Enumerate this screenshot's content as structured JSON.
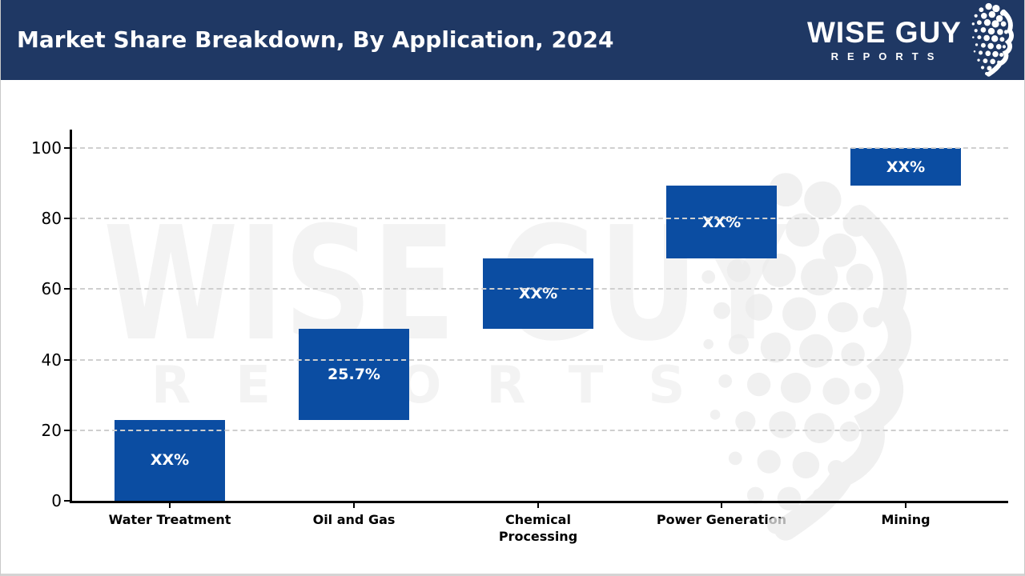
{
  "header": {
    "title": "Market Share Breakdown, By Application, 2024",
    "logo": {
      "line1": "WISE GUY",
      "line2": "REPORTS"
    }
  },
  "watermark": {
    "line1": "WISE GUY",
    "line2": "REPORTS"
  },
  "colors": {
    "header_bg": "#1f3864",
    "bar": "#0b4da2",
    "bar_label": "#ffffff",
    "grid": "#cfcfcf",
    "axis": "#000000",
    "watermark": "#f3f3f3"
  },
  "chart_data": {
    "type": "bar",
    "subtype": "waterfall",
    "title": "Market Share Breakdown, By Application, 2024",
    "xlabel": "",
    "ylabel": "",
    "ylim": [
      0,
      100
    ],
    "yticks": [
      0,
      20,
      40,
      60,
      80,
      100
    ],
    "grid": "horizontal-dashed",
    "legend": "none",
    "categories": [
      "Water Treatment",
      "Oil and Gas",
      "Chemical\nProcessing",
      "Power Generation",
      "Mining"
    ],
    "segments": [
      {
        "category": "Water Treatment",
        "start": 0,
        "end": 23,
        "value_label": "XX%"
      },
      {
        "category": "Oil and Gas",
        "start": 23,
        "end": 48.7,
        "value_label": "25.7%"
      },
      {
        "category": "Chemical\nProcessing",
        "start": 48.7,
        "end": 68.7,
        "value_label": "XX%"
      },
      {
        "category": "Power Generation",
        "start": 68.7,
        "end": 89.3,
        "value_label": "XX%"
      },
      {
        "category": "Mining",
        "start": 89.3,
        "end": 100,
        "value_label": "XX%"
      }
    ]
  }
}
